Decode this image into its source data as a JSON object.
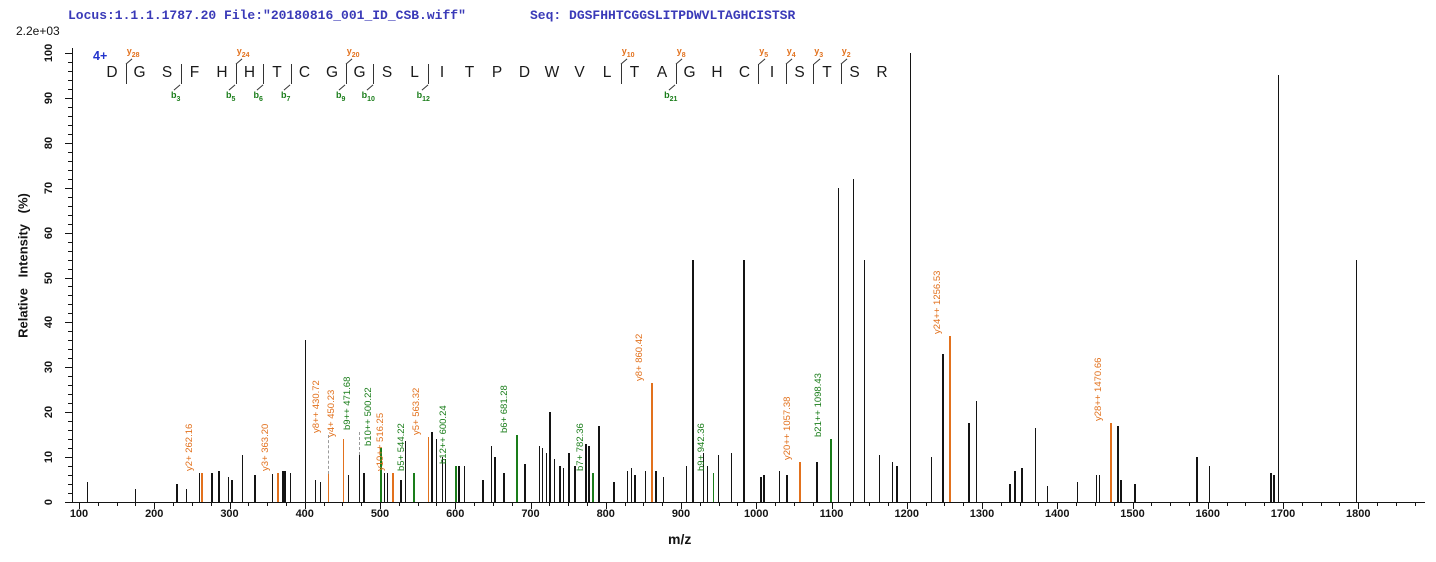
{
  "header": {
    "locus_file": "Locus:1.1.1.1787.20 File:\"20180816_001_ID_CSB.wiff\"",
    "seq_label": "Seq: ",
    "sequence": "DGSFHHTCGGSLITPDWVLTAGHCISTSR",
    "max_intensity": "2.2e+03"
  },
  "precursor": {
    "charge": "4+"
  },
  "colors": {
    "header_blue": "#3a3ab8",
    "y_ion": "#e2711d",
    "b_ion": "#1a7d1a",
    "peak": "#141414",
    "dashed_pointer": "#9a9a9a"
  },
  "sequence_annotation": {
    "residues": "DGSFHHTCGGSLITPDWVLTAGHCISTSR",
    "fragments": [
      {
        "after": 1,
        "y": "28"
      },
      {
        "after": 3,
        "b": "3"
      },
      {
        "after": 5,
        "y": "24",
        "b": "5"
      },
      {
        "after": 6,
        "b": "6"
      },
      {
        "after": 7,
        "b": "7"
      },
      {
        "after": 9,
        "y": "20",
        "b": "9"
      },
      {
        "after": 10,
        "b": "10"
      },
      {
        "after": 12,
        "b": "12"
      },
      {
        "after": 19,
        "y": "10"
      },
      {
        "after": 21,
        "y": "8",
        "b": "21"
      },
      {
        "after": 24,
        "y": "5"
      },
      {
        "after": 25,
        "y": "4"
      },
      {
        "after": 26,
        "y": "3"
      },
      {
        "after": 27,
        "y": "2"
      }
    ]
  },
  "chart_data": {
    "type": "bar",
    "subtype": "ms2-mass-spectrum",
    "xlabel": "m/z",
    "ylabel": "Relative Intensity (%)",
    "xlim": [
      81,
      1878
    ],
    "ylim": [
      0,
      100
    ],
    "xticks": [
      100,
      200,
      300,
      400,
      500,
      600,
      700,
      800,
      900,
      1000,
      1100,
      1200,
      1300,
      1400,
      1500,
      1600,
      1700,
      1800
    ],
    "yticks": [
      0,
      10,
      20,
      30,
      40,
      50,
      60,
      70,
      80,
      90,
      100
    ],
    "x_minor_step": 25,
    "y_minor_step": 2,
    "grid": false,
    "legend": "none",
    "peaks": [
      {
        "mz": 110,
        "i": 4.5
      },
      {
        "mz": 174,
        "i": 3
      },
      {
        "mz": 229,
        "i": 4
      },
      {
        "mz": 242,
        "i": 3
      },
      {
        "mz": 259,
        "i": 6.5
      },
      {
        "mz": 262.16,
        "i": 6.5,
        "label": "y2+ 262.16",
        "ion": "y"
      },
      {
        "mz": 276,
        "i": 6.5
      },
      {
        "mz": 285,
        "i": 7
      },
      {
        "mz": 298,
        "i": 5.5
      },
      {
        "mz": 302,
        "i": 5
      },
      {
        "mz": 316,
        "i": 10.5
      },
      {
        "mz": 333,
        "i": 6
      },
      {
        "mz": 356,
        "i": 6.3
      },
      {
        "mz": 363.2,
        "i": 6.5,
        "label": "y3+ 363.20",
        "ion": "y"
      },
      {
        "mz": 370,
        "i": 7
      },
      {
        "mz": 373,
        "i": 6.8
      },
      {
        "mz": 380,
        "i": 6.5
      },
      {
        "mz": 400,
        "i": 36
      },
      {
        "mz": 413,
        "i": 5
      },
      {
        "mz": 420,
        "i": 4.5
      },
      {
        "mz": 430.72,
        "i": 6.3,
        "label": "y8++ 430.72",
        "ion": "y",
        "label_i": 15
      },
      {
        "mz": 450.23,
        "i": 14,
        "label": "y4+ 450.23",
        "ion": "y"
      },
      {
        "mz": 457,
        "i": 6
      },
      {
        "mz": 471.68,
        "i": 10.5,
        "label": "b9++ 471.68",
        "ion": "b",
        "label_i": 15.5,
        "line": "black"
      },
      {
        "mz": 478,
        "i": 6.5
      },
      {
        "mz": 500.22,
        "i": 12,
        "label": "b10++ 500.22",
        "ion": "b"
      },
      {
        "mz": 505,
        "i": 6.5
      },
      {
        "mz": 509,
        "i": 6.5
      },
      {
        "mz": 516.25,
        "i": 6.5,
        "label": "y10++ 516.25",
        "ion": "y"
      },
      {
        "mz": 527,
        "i": 5
      },
      {
        "mz": 533,
        "i": 13.5
      },
      {
        "mz": 544.22,
        "i": 6.5,
        "label": "b5+ 544.22",
        "ion": "b"
      },
      {
        "mz": 563.32,
        "i": 14.5,
        "label": "y5+ 563.32",
        "ion": "y"
      },
      {
        "mz": 568,
        "i": 15.5
      },
      {
        "mz": 574,
        "i": 14
      },
      {
        "mz": 582,
        "i": 10
      },
      {
        "mz": 586,
        "i": 9.5
      },
      {
        "mz": 600.24,
        "i": 8,
        "label": "b12++ 600.24",
        "ion": "b"
      },
      {
        "mz": 604,
        "i": 8
      },
      {
        "mz": 611,
        "i": 8
      },
      {
        "mz": 636,
        "i": 5
      },
      {
        "mz": 647,
        "i": 12.5
      },
      {
        "mz": 652,
        "i": 10
      },
      {
        "mz": 664,
        "i": 6.5
      },
      {
        "mz": 681.28,
        "i": 15,
        "label": "b6+ 681.28",
        "ion": "b"
      },
      {
        "mz": 692,
        "i": 8.5
      },
      {
        "mz": 711,
        "i": 12.5
      },
      {
        "mz": 715,
        "i": 12
      },
      {
        "mz": 720,
        "i": 11
      },
      {
        "mz": 725,
        "i": 20
      },
      {
        "mz": 731,
        "i": 9.5
      },
      {
        "mz": 738,
        "i": 8
      },
      {
        "mz": 743,
        "i": 7.5
      },
      {
        "mz": 750,
        "i": 11
      },
      {
        "mz": 758,
        "i": 8
      },
      {
        "mz": 773,
        "i": 13
      },
      {
        "mz": 777,
        "i": 12.5
      },
      {
        "mz": 782.36,
        "i": 6.5,
        "label": "b7+ 782.36",
        "ion": "b"
      },
      {
        "mz": 790,
        "i": 17
      },
      {
        "mz": 810,
        "i": 4.5
      },
      {
        "mz": 828,
        "i": 7
      },
      {
        "mz": 833,
        "i": 7.5
      },
      {
        "mz": 838,
        "i": 6
      },
      {
        "mz": 852,
        "i": 7
      },
      {
        "mz": 860.42,
        "i": 26.5,
        "label": "y8+ 860.42",
        "ion": "y"
      },
      {
        "mz": 866,
        "i": 7
      },
      {
        "mz": 876,
        "i": 5.5
      },
      {
        "mz": 906,
        "i": 8
      },
      {
        "mz": 915,
        "i": 54
      },
      {
        "mz": 929,
        "i": 11
      },
      {
        "mz": 934,
        "i": 8
      },
      {
        "mz": 942.36,
        "i": 6.5,
        "label": "b9+ 942.36",
        "ion": "b"
      },
      {
        "mz": 949,
        "i": 10.5
      },
      {
        "mz": 966,
        "i": 11
      },
      {
        "mz": 983,
        "i": 54
      },
      {
        "mz": 1005,
        "i": 5.5
      },
      {
        "mz": 1009,
        "i": 6
      },
      {
        "mz": 1030,
        "i": 7
      },
      {
        "mz": 1040,
        "i": 6
      },
      {
        "mz": 1057.38,
        "i": 9,
        "label": "y20++ 1057.38",
        "ion": "y"
      },
      {
        "mz": 1080,
        "i": 9
      },
      {
        "mz": 1098.43,
        "i": 14,
        "label": "b21++ 1098.43",
        "ion": "b"
      },
      {
        "mz": 1108,
        "i": 70
      },
      {
        "mz": 1128,
        "i": 72
      },
      {
        "mz": 1143,
        "i": 54
      },
      {
        "mz": 1163,
        "i": 10.5
      },
      {
        "mz": 1180,
        "i": 9
      },
      {
        "mz": 1186,
        "i": 8
      },
      {
        "mz": 1204,
        "i": 100
      },
      {
        "mz": 1232,
        "i": 10
      },
      {
        "mz": 1247,
        "i": 33
      },
      {
        "mz": 1256.53,
        "i": 37,
        "label": "y24++ 1256.53",
        "ion": "y"
      },
      {
        "mz": 1282,
        "i": 17.5
      },
      {
        "mz": 1292,
        "i": 22.5
      },
      {
        "mz": 1336,
        "i": 4
      },
      {
        "mz": 1343,
        "i": 7
      },
      {
        "mz": 1352,
        "i": 7.5
      },
      {
        "mz": 1370,
        "i": 16.5
      },
      {
        "mz": 1386,
        "i": 3.5
      },
      {
        "mz": 1426,
        "i": 4.5
      },
      {
        "mz": 1451,
        "i": 6
      },
      {
        "mz": 1455,
        "i": 6
      },
      {
        "mz": 1470.66,
        "i": 17.5,
        "label": "y28++ 1470.66",
        "ion": "y"
      },
      {
        "mz": 1480,
        "i": 17
      },
      {
        "mz": 1484,
        "i": 5
      },
      {
        "mz": 1502,
        "i": 4
      },
      {
        "mz": 1585,
        "i": 10
      },
      {
        "mz": 1601,
        "i": 8
      },
      {
        "mz": 1683,
        "i": 6.5
      },
      {
        "mz": 1687,
        "i": 6
      },
      {
        "mz": 1693,
        "i": 95
      },
      {
        "mz": 1797,
        "i": 54
      }
    ]
  }
}
